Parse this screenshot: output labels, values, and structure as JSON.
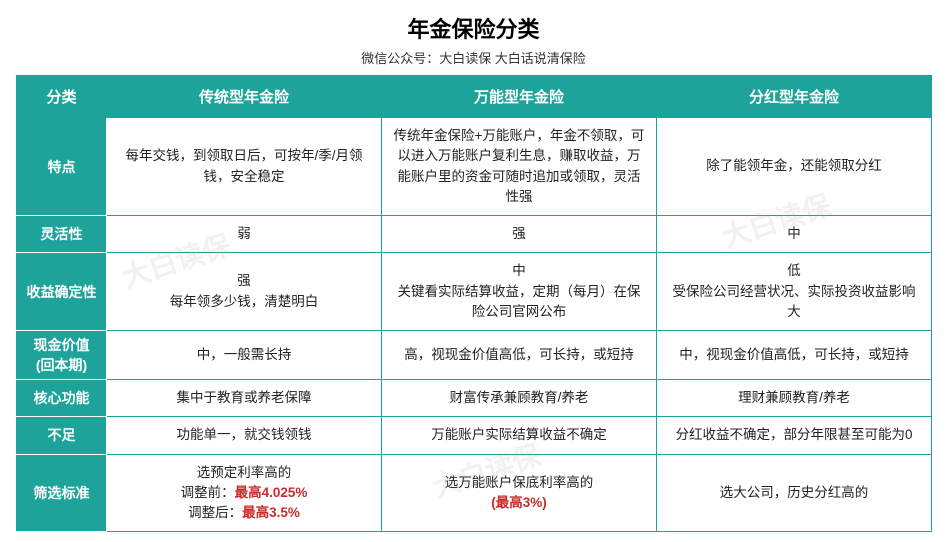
{
  "title": "年金保险分类",
  "subtitle": "微信公众号：大白读保 大白话说清保险",
  "watermark": "大白读保",
  "headers": [
    "分类",
    "传统型年金险",
    "万能型年金险",
    "分红型年金险"
  ],
  "rows": [
    {
      "head": "特点",
      "size": "big",
      "cells": [
        {
          "lines": [
            "每年交钱，到领取日后，可按年/季/月领",
            "钱，安全稳定"
          ]
        },
        {
          "lines": [
            "传统年金保险+万能账户，年金不领取，可",
            "以进入万能账户复利生息，赚取收益，万",
            "能账户里的资金可随时追加或领取，灵活",
            "性强"
          ]
        },
        {
          "lines": [
            "除了能领年金，还能领取分红"
          ]
        }
      ]
    },
    {
      "head": "灵活性",
      "size": "sm",
      "cells": [
        {
          "lines": [
            "弱"
          ]
        },
        {
          "lines": [
            "强"
          ]
        },
        {
          "lines": [
            "中"
          ]
        }
      ]
    },
    {
      "head": "收益确定性",
      "size": "med",
      "cells": [
        {
          "lines": [
            "强",
            "每年领多少钱，清楚明白"
          ]
        },
        {
          "lines": [
            "中",
            "关键看实际结算收益，定期（每月）在保",
            "险公司官网公布"
          ]
        },
        {
          "lines": [
            "低",
            "受保险公司经营状况、实际投资收益影响",
            "大"
          ]
        }
      ]
    },
    {
      "head": "现金价值\n(回本期)",
      "size": "sm",
      "cells": [
        {
          "lines": [
            "中，一般需长持"
          ]
        },
        {
          "lines": [
            "高，视现金价值高低，可长持，或短持"
          ]
        },
        {
          "lines": [
            "中，视现金价值高低，可长持，或短持"
          ]
        }
      ]
    },
    {
      "head": "核心功能",
      "size": "sm",
      "cells": [
        {
          "lines": [
            "集中于教育或养老保障"
          ]
        },
        {
          "lines": [
            "财富传承兼顾教育/养老"
          ]
        },
        {
          "lines": [
            "理财兼顾教育/养老"
          ]
        }
      ]
    },
    {
      "head": "不足",
      "size": "sm",
      "cells": [
        {
          "lines": [
            "功能单一，就交钱领钱"
          ]
        },
        {
          "lines": [
            "万能账户实际结算收益不确定"
          ]
        },
        {
          "lines": [
            "分红收益不确定，部分年限甚至可能为0"
          ]
        }
      ]
    },
    {
      "head": "筛选标准",
      "size": "med",
      "cells": [
        {
          "rich": [
            {
              "t": "选预定利率高的"
            },
            {
              "br": true
            },
            {
              "t": "调整前："
            },
            {
              "t": "最高4.025%",
              "hl": true
            },
            {
              "br": true
            },
            {
              "t": "调整后："
            },
            {
              "t": "最高3.5%",
              "hl": true
            }
          ]
        },
        {
          "rich": [
            {
              "t": "选万能账户保底利率高的"
            },
            {
              "br": true
            },
            {
              "t": "(最高3%)",
              "hl": true
            }
          ]
        },
        {
          "lines": [
            "选大公司，历史分红高的"
          ]
        }
      ]
    }
  ]
}
